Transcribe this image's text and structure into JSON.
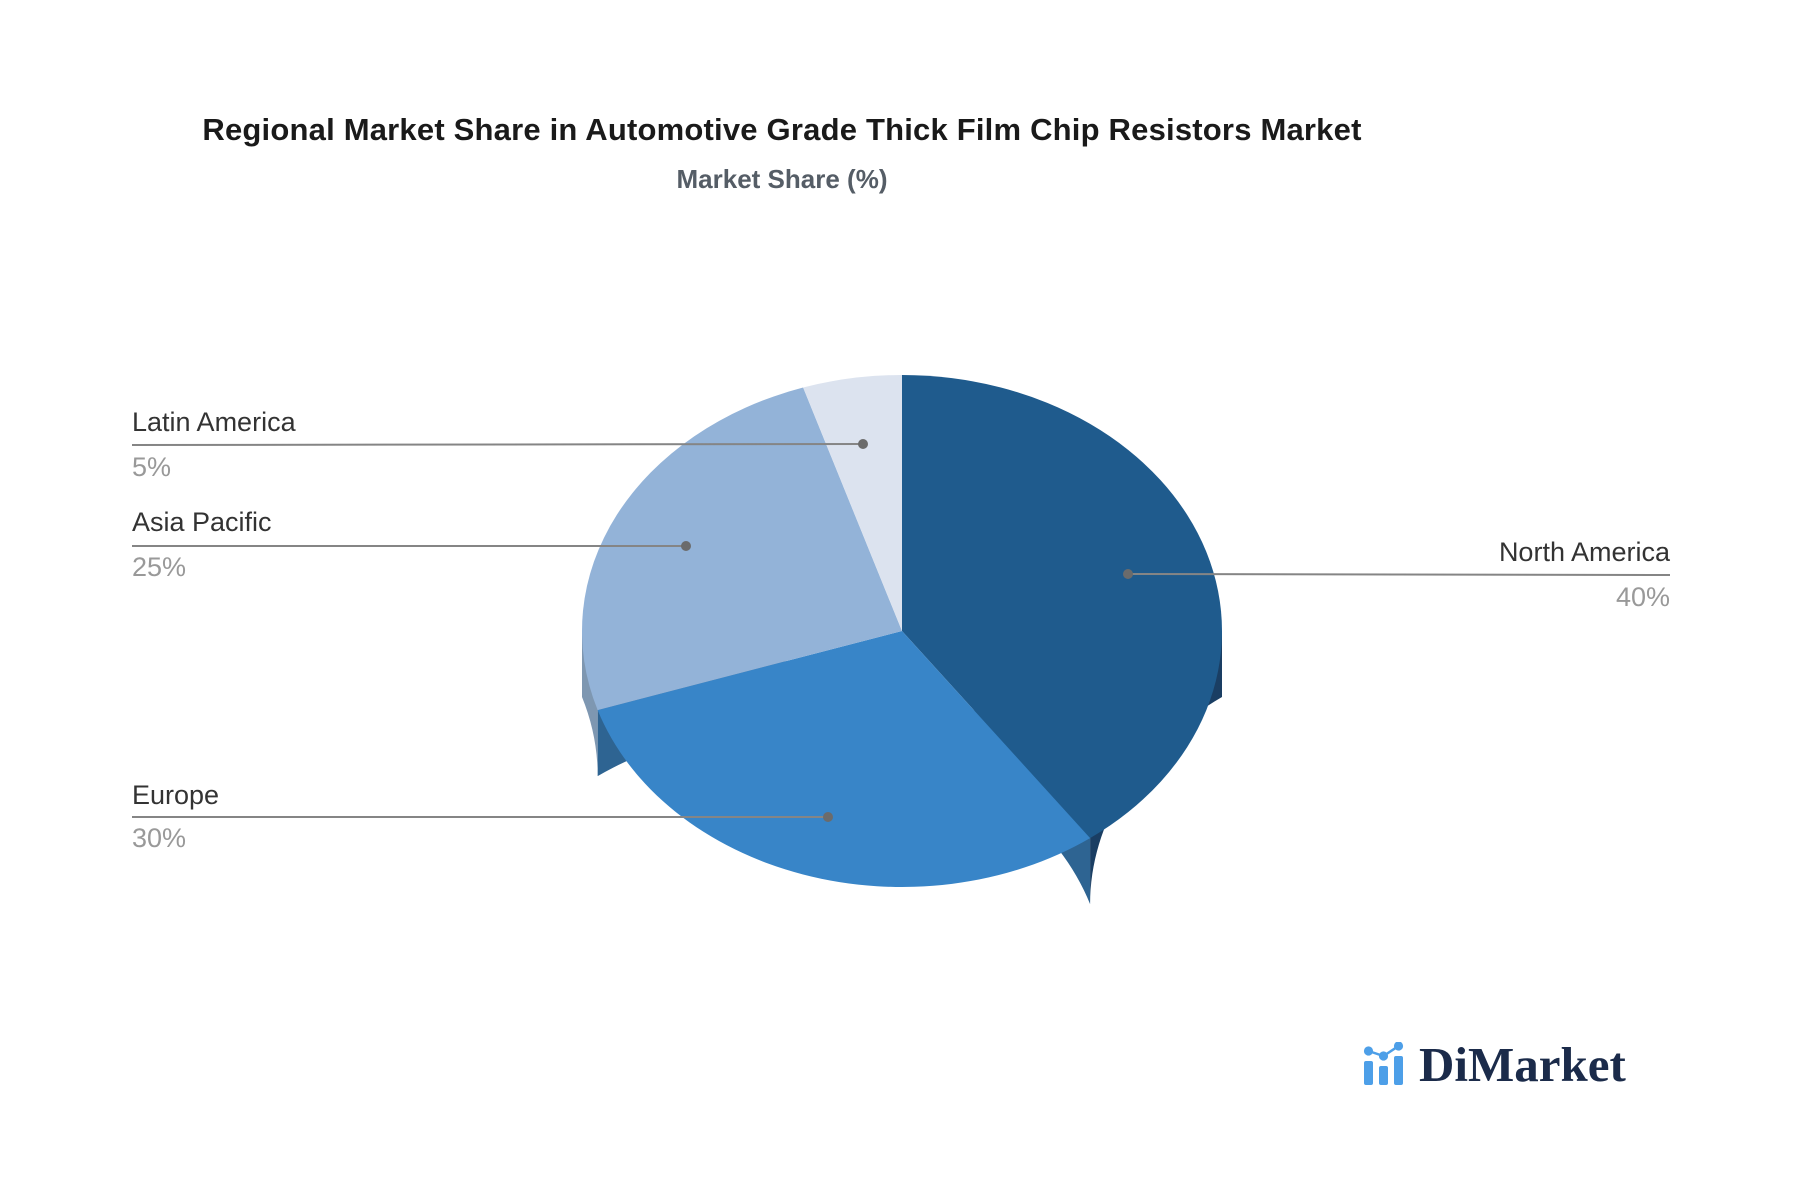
{
  "header": {
    "title": "Regional Market Share in Automotive Grade Thick Film Chip Resistors Market",
    "subtitle": "Market Share (%)"
  },
  "chart_data": {
    "type": "pie",
    "style": "3d",
    "title": "Regional Market Share in Automotive Grade Thick Film Chip Resistors Market",
    "subtitle": "Market Share (%)",
    "unit": "%",
    "direction": "clockwise",
    "start_angle_deg": 0,
    "legend": "none",
    "label_style": "leader-lines",
    "slices": [
      {
        "label": "North America",
        "value": 40,
        "display": "40%",
        "color": "#1F5B8D",
        "side_color": "#1A3E63"
      },
      {
        "label": "Europe",
        "value": 30,
        "display": "30%",
        "color": "#3885C8",
        "side_color": "#2E6492"
      },
      {
        "label": "Asia Pacific",
        "value": 25,
        "display": "25%",
        "color": "#93B3D8",
        "side_color": "#7E97B1"
      },
      {
        "label": "Latin America",
        "value": 5,
        "display": "5%",
        "color": "#DCE3EF",
        "side_color": "#B9C4D6"
      }
    ]
  },
  "colors": {
    "background": "#FFFFFF",
    "title": "#1A1A1A",
    "subtitle": "#555D66",
    "label_name": "#333333",
    "label_value": "#999999",
    "leader_line": "#858585",
    "leader_dot": "#6B6B6B",
    "logo_text": "#1B2B4A",
    "logo_icon": "#4D9FE8"
  },
  "logo": {
    "text": "DiMarket"
  }
}
